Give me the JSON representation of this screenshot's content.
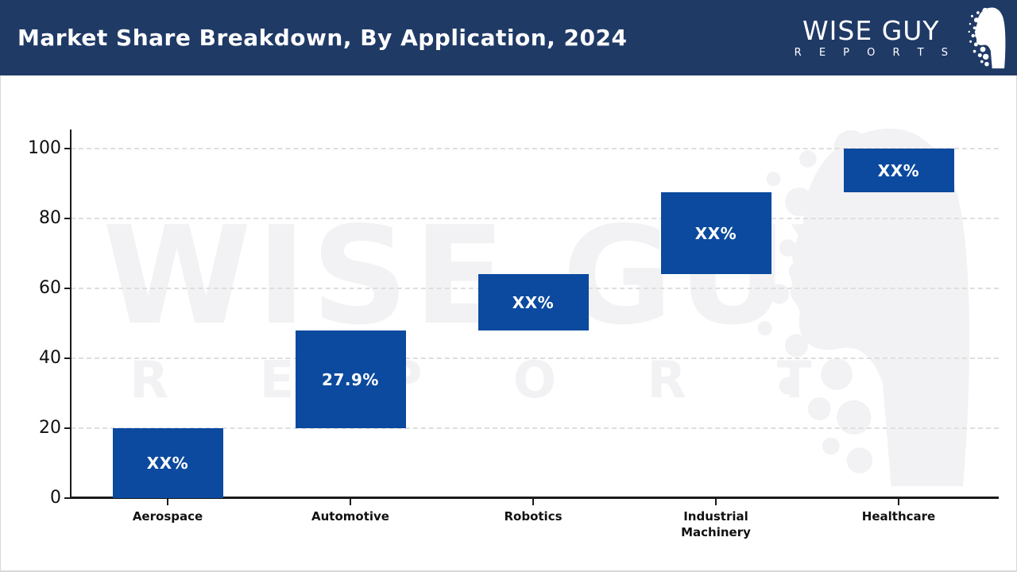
{
  "header": {
    "title": "Market Share Breakdown, By Application, 2024",
    "logo": {
      "line1": "WISE GUY",
      "line2": "R E P O R T S",
      "head_icon": "dotted-head-profile"
    }
  },
  "watermark": {
    "line1": "WISE GUY",
    "line2": "R E P O R T S",
    "head_icon": "dotted-head-profile"
  },
  "colors": {
    "header_bg": "#203A66",
    "bar_fill": "#0B4A9E",
    "bar_label_text": "#ffffff",
    "axis": "#1a1a1a",
    "gridline": "#dedede",
    "watermark": "#f2f2f4"
  },
  "chart_data": {
    "type": "bar",
    "subtype": "waterfall",
    "title": "Market Share Breakdown, By Application, 2024",
    "xlabel": "",
    "ylabel": "",
    "ylim": [
      0,
      100
    ],
    "yticks": [
      0,
      20,
      40,
      60,
      80,
      100
    ],
    "grid": "horizontal-dashed",
    "legend": "none",
    "categories": [
      "Aerospace",
      "Automotive",
      "Robotics",
      "Industrial Machinery",
      "Healthcare"
    ],
    "bars": [
      {
        "category": "Aerospace",
        "start": 0,
        "end": 20,
        "value": 20,
        "label": "XX%"
      },
      {
        "category": "Automotive",
        "start": 20,
        "end": 47.9,
        "value": 27.9,
        "label": "27.9%"
      },
      {
        "category": "Robotics",
        "start": 47.9,
        "end": 64,
        "value": 16.1,
        "label": "XX%"
      },
      {
        "category": "Industrial Machinery",
        "start": 64,
        "end": 87.5,
        "value": 23.5,
        "label": "XX%"
      },
      {
        "category": "Healthcare",
        "start": 87.5,
        "end": 100,
        "value": 12.5,
        "label": "XX%"
      }
    ]
  }
}
